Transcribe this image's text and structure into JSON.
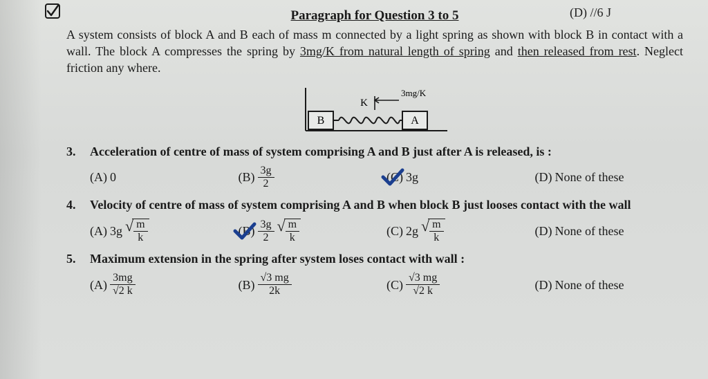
{
  "top_option": "(D) //6 J",
  "paragraph_title": "Paragraph for Question 3 to 5",
  "paragraph_parts": {
    "p1": "A system consists of block A and B each of mass m connected by a light spring as shown with block B in contact with a wall. The block A compresses the spring by ",
    "u1": "3mg/K from natural length of spring",
    "p2": " and ",
    "u2": "then released from rest",
    "p3": ". Neglect friction any where."
  },
  "diagram": {
    "labelB": "B",
    "labelA": "A",
    "labelK": "K",
    "labelDisp": "3mg/K",
    "color_line": "#1a1a1a"
  },
  "tick_color": "#1b3f8f",
  "questions": [
    {
      "num": "3.",
      "text": "Acceleration of centre of mass of system comprising A and B just after A is released, is :",
      "options": [
        {
          "label": "(A)",
          "kind": "plain",
          "value": "0"
        },
        {
          "label": "(B)",
          "kind": "frac",
          "num": "3g",
          "den": "2"
        },
        {
          "label": "(C)",
          "kind": "plain",
          "value": "3g",
          "ticked": true
        },
        {
          "label": "(D)",
          "kind": "plain",
          "value": "None of these"
        }
      ]
    },
    {
      "num": "4.",
      "text": "Velocity of centre of mass of system comprising A and B when block B just looses contact with the wall",
      "options": [
        {
          "label": "(A)",
          "kind": "coef_sqrt_frac",
          "coef": "3g",
          "num": "m",
          "den": "k"
        },
        {
          "label": "(B)",
          "kind": "frac_sqrt_frac",
          "fnum": "3g",
          "fden": "2",
          "num": "m",
          "den": "k",
          "ticked": true
        },
        {
          "label": "(C)",
          "kind": "coef_sqrt_frac",
          "coef": "2g",
          "num": "m",
          "den": "k"
        },
        {
          "label": "(D)",
          "kind": "plain",
          "value": "None of these"
        }
      ]
    },
    {
      "num": "5.",
      "text": "Maximum extension in the spring after system loses contact with wall :",
      "options": [
        {
          "label": "(A)",
          "kind": "frac",
          "num": "3mg",
          "den": "√2 k"
        },
        {
          "label": "(B)",
          "kind": "frac",
          "num": "√3 mg",
          "den": "2k"
        },
        {
          "label": "(C)",
          "kind": "frac",
          "num": "√3 mg",
          "den": "√2 k"
        },
        {
          "label": "(D)",
          "kind": "plain",
          "value": "None of these"
        }
      ]
    }
  ]
}
